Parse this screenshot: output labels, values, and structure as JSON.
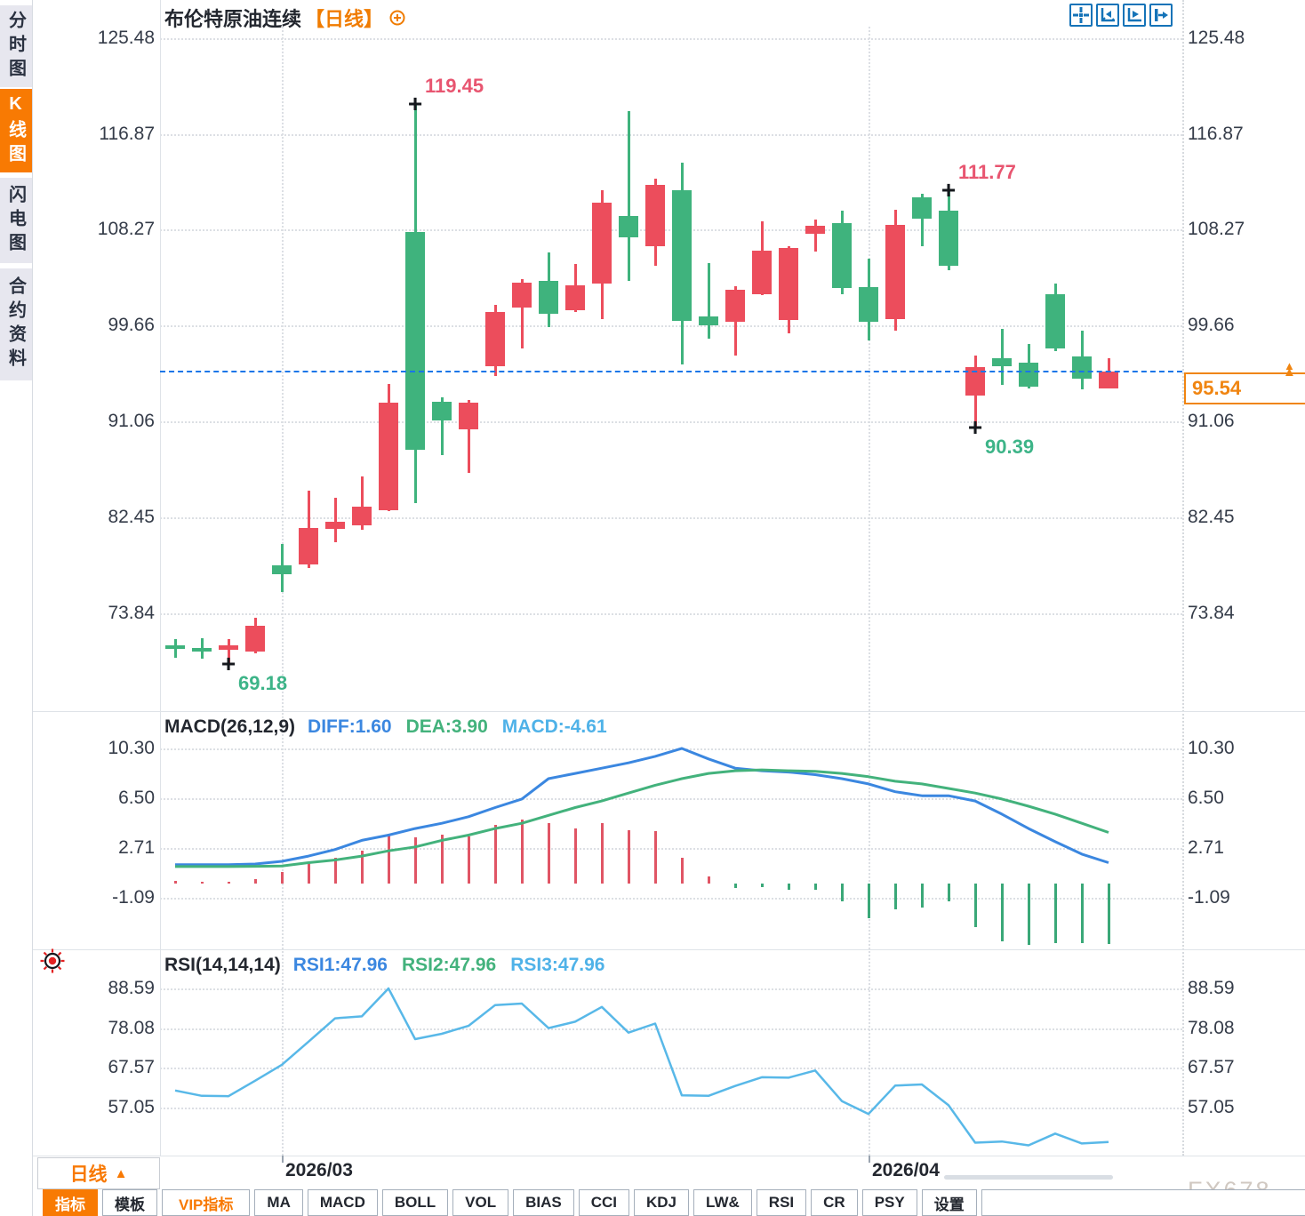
{
  "sidebar": {
    "tabs": [
      {
        "label": "分时图",
        "active": false
      },
      {
        "label": "K线图",
        "active": true
      },
      {
        "label": "闪电图",
        "active": false
      },
      {
        "label": "合约资料",
        "active": false
      }
    ]
  },
  "header": {
    "title": "布伦特原油连续",
    "period": "【日线】",
    "window_icons": [
      "crosshair-icon",
      "axis-start-icon",
      "axis-play-icon",
      "axis-end-icon"
    ]
  },
  "period_selector": {
    "label": "日线",
    "arrow": "▲"
  },
  "price_marker": {
    "value": "95.54"
  },
  "watermark": "FX678",
  "toolbar": {
    "items": [
      {
        "label": "指标",
        "style": "active"
      },
      {
        "label": "模板",
        "style": "normal"
      },
      {
        "label": "VIP指标",
        "style": "vip"
      },
      {
        "label": "MA",
        "style": "normal"
      },
      {
        "label": "MACD",
        "style": "normal"
      },
      {
        "label": "BOLL",
        "style": "normal"
      },
      {
        "label": "VOL",
        "style": "normal"
      },
      {
        "label": "BIAS",
        "style": "normal"
      },
      {
        "label": "CCI",
        "style": "normal"
      },
      {
        "label": "KDJ",
        "style": "normal"
      },
      {
        "label": "LW&",
        "style": "normal"
      },
      {
        "label": "RSI",
        "style": "normal"
      },
      {
        "label": "CR",
        "style": "normal"
      },
      {
        "label": "PSY",
        "style": "normal"
      },
      {
        "label": "设置",
        "style": "normal"
      }
    ]
  },
  "colors": {
    "up_candle": "#ec4d5c",
    "down_candle": "#3fb37d",
    "diff_line": "#3b87e0",
    "dea_line": "#43b27c",
    "rsi_line": "#58b8e8",
    "hist_positive": "#e05565",
    "hist_negative": "#3aa878",
    "current_price_line": "#1976e8",
    "accent_orange": "#f87903",
    "high_label": "#e85570",
    "low_label": "#3db488",
    "axis_text": "#353c49"
  },
  "chart_data": {
    "type": "candlestick",
    "title": "布伦特原油连续",
    "interval": "日线",
    "price_panel": {
      "y_ticks": [
        "125.48",
        "116.87",
        "108.27",
        "99.66",
        "91.06",
        "82.45",
        "73.84"
      ],
      "current_price": "95.54",
      "candles": [
        [
          70.9,
          71.5,
          69.8,
          70.6
        ],
        [
          70.7,
          71.6,
          69.7,
          70.4
        ],
        [
          70.5,
          71.5,
          69.18,
          70.9
        ],
        [
          70.4,
          73.4,
          70.2,
          72.7
        ],
        [
          78.1,
          80.0,
          75.7,
          77.3
        ],
        [
          78.2,
          84.8,
          77.9,
          81.5
        ],
        [
          81.4,
          84.2,
          80.2,
          82.0
        ],
        [
          81.7,
          86.1,
          81.3,
          83.4
        ],
        [
          83.1,
          94.4,
          83.0,
          92.7
        ],
        [
          108.1,
          119.45,
          83.7,
          88.5
        ],
        [
          92.8,
          93.2,
          88.0,
          91.1
        ],
        [
          90.3,
          93.0,
          86.4,
          92.7
        ],
        [
          96.0,
          101.5,
          95.1,
          100.9
        ],
        [
          101.3,
          103.8,
          97.6,
          103.5
        ],
        [
          103.7,
          106.2,
          99.5,
          100.7
        ],
        [
          101.0,
          105.2,
          100.9,
          103.3
        ],
        [
          103.4,
          111.8,
          100.2,
          110.7
        ],
        [
          109.5,
          118.9,
          103.7,
          107.6
        ],
        [
          106.8,
          112.9,
          105.0,
          112.3
        ],
        [
          111.8,
          114.3,
          96.2,
          100.1
        ],
        [
          100.5,
          105.3,
          98.5,
          99.7
        ],
        [
          100.0,
          103.2,
          97.0,
          102.9
        ],
        [
          102.5,
          109.0,
          102.4,
          106.4
        ],
        [
          100.2,
          106.8,
          99.0,
          106.6
        ],
        [
          107.9,
          109.2,
          106.3,
          108.6
        ],
        [
          108.9,
          110.0,
          102.5,
          103.0
        ],
        [
          103.1,
          105.7,
          98.3,
          100.0
        ],
        [
          100.2,
          110.1,
          99.2,
          108.7
        ],
        [
          111.2,
          111.5,
          106.8,
          109.3
        ],
        [
          110.0,
          111.77,
          104.6,
          105.0
        ],
        [
          93.4,
          97.0,
          90.39,
          95.9
        ],
        [
          96.7,
          99.4,
          94.3,
          96.0
        ],
        [
          96.3,
          98.0,
          94.0,
          94.2
        ],
        [
          102.5,
          103.4,
          97.4,
          97.6
        ],
        [
          96.9,
          99.2,
          93.9,
          94.9
        ],
        [
          94.0,
          96.7,
          94.0,
          95.54
        ]
      ],
      "annotations": [
        {
          "text": "119.45",
          "candle": 9,
          "at": "high",
          "kind": "high_label"
        },
        {
          "text": "111.77",
          "candle": 29,
          "at": "high",
          "kind": "high_label"
        },
        {
          "text": "90.39",
          "candle": 30,
          "at": "low",
          "kind": "low_label"
        },
        {
          "text": "69.18",
          "candle": 2,
          "at": "low",
          "kind": "low_label"
        }
      ]
    },
    "macd_panel": {
      "title": "MACD(26,12,9)",
      "legend": [
        {
          "text": "DIFF:1.60",
          "color": "#3b87e0"
        },
        {
          "text": "DEA:3.90",
          "color": "#43b27c"
        },
        {
          "text": "MACD:-4.61",
          "color": "#4fb2e8"
        }
      ],
      "y_ticks": [
        "10.30",
        "6.50",
        "2.71",
        "-1.09"
      ],
      "diff": [
        1.45,
        1.45,
        1.45,
        1.5,
        1.7,
        2.1,
        2.6,
        3.3,
        3.7,
        4.2,
        4.6,
        5.1,
        5.8,
        6.45,
        8.0,
        8.4,
        8.8,
        9.2,
        9.7,
        10.3,
        9.5,
        8.8,
        8.6,
        8.5,
        8.3,
        8.0,
        7.6,
        7.0,
        6.7,
        6.7,
        6.3,
        5.3,
        4.2,
        3.2,
        2.25,
        1.6
      ],
      "dea": [
        1.3,
        1.3,
        1.3,
        1.32,
        1.35,
        1.6,
        1.8,
        2.1,
        2.5,
        2.8,
        3.3,
        3.7,
        4.2,
        4.6,
        5.2,
        5.8,
        6.3,
        6.9,
        7.5,
        8.0,
        8.4,
        8.6,
        8.67,
        8.6,
        8.55,
        8.4,
        8.15,
        7.8,
        7.6,
        7.25,
        6.9,
        6.45,
        5.9,
        5.3,
        4.6,
        3.9
      ],
      "histogram": [
        0.2,
        0.15,
        0.1,
        0.33,
        0.9,
        1.6,
        2.0,
        2.5,
        3.8,
        3.5,
        3.7,
        3.6,
        4.5,
        4.9,
        4.6,
        4.2,
        4.6,
        4.1,
        4.0,
        2.0,
        0.55,
        -0.35,
        -0.24,
        -0.46,
        -0.46,
        -1.37,
        -2.62,
        -1.94,
        -1.83,
        -1.37,
        -3.3,
        -4.4,
        -4.66,
        -4.55,
        -4.55,
        -4.61
      ]
    },
    "rsi_panel": {
      "title": "RSI(14,14,14)",
      "legend": [
        {
          "text": "RSI1:47.96",
          "color": "#3b87e0"
        },
        {
          "text": "RSI2:47.96",
          "color": "#43b27c"
        },
        {
          "text": "RSI3:47.96",
          "color": "#4fb2e8"
        }
      ],
      "y_ticks": [
        "88.59",
        "78.08",
        "67.57",
        "57.05"
      ],
      "rsi": [
        61.6,
        60.2,
        60.1,
        64.2,
        68.4,
        74.5,
        80.7,
        81.2,
        88.59,
        75.2,
        76.6,
        78.7,
        84.2,
        84.6,
        78.1,
        79.8,
        83.7,
        76.9,
        79.3,
        60.3,
        60.2,
        62.8,
        65.1,
        65.0,
        66.9,
        58.8,
        55.4,
        62.9,
        63.2,
        57.7,
        47.8,
        48.1,
        47.1,
        50.2,
        47.6,
        47.96
      ],
      "value": 47.96
    },
    "x_labels": [
      {
        "text": "2026/03",
        "candle": 4
      },
      {
        "text": "2026/04",
        "candle": 26
      }
    ]
  }
}
